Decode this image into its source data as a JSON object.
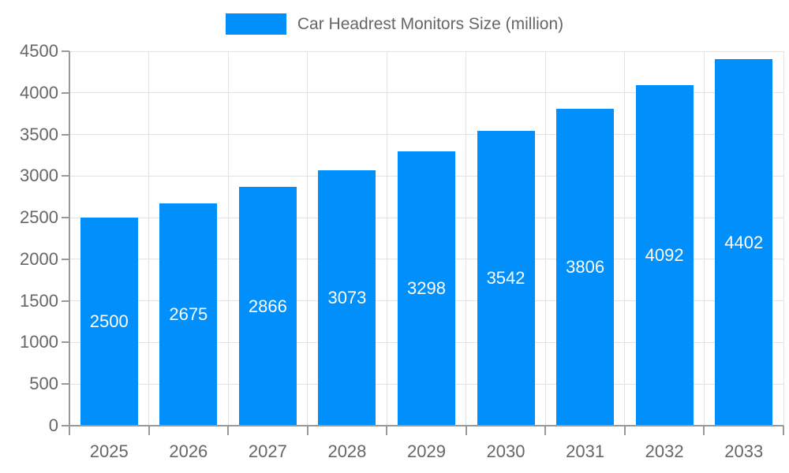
{
  "chart_data": {
    "type": "bar",
    "title": "Car Headrest Monitors Size (million)",
    "categories": [
      "2025",
      "2026",
      "2027",
      "2028",
      "2029",
      "2030",
      "2031",
      "2032",
      "2033"
    ],
    "values": [
      2500,
      2675,
      2866,
      3073,
      3298,
      3542,
      3806,
      4092,
      4402
    ],
    "xlabel": "",
    "ylabel": "",
    "ylim": [
      0,
      4500
    ],
    "yticks": [
      0,
      500,
      1000,
      1500,
      2000,
      2500,
      3000,
      3500,
      4000,
      4500
    ],
    "grid": true,
    "bar_labels_inside": true,
    "legend": {
      "position": "top",
      "entries": [
        "Car Headrest Monitors Size (million)"
      ]
    },
    "colors": {
      "bar": "#008FFB",
      "bar_label": "#ffffff",
      "axis_text": "#666666",
      "grid_line": "#e3e3e3",
      "axis_line": "#999999"
    }
  }
}
